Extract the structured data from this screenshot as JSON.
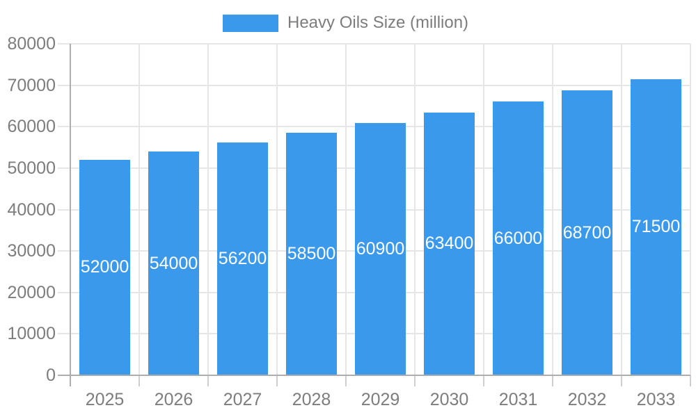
{
  "chart_data": {
    "type": "bar",
    "title": "Heavy Oils Size (million)",
    "legend": {
      "label": "Heavy Oils Size (million)",
      "position": "top"
    },
    "categories": [
      "2025",
      "2026",
      "2027",
      "2028",
      "2029",
      "2030",
      "2031",
      "2032",
      "2033"
    ],
    "series": [
      {
        "name": "Heavy Oils Size (million)",
        "values": [
          52000,
          54000,
          56200,
          58500,
          60900,
          63400,
          66000,
          68700,
          71500
        ]
      }
    ],
    "bar_value_labels": [
      "52000",
      "54000",
      "56200",
      "58500",
      "60900",
      "63400",
      "66000",
      "68700",
      "71500"
    ],
    "xlabel": "",
    "ylabel": "",
    "ylim": [
      0,
      80000
    ],
    "ytick_step": 10000,
    "ytick_labels": [
      "0",
      "10000",
      "20000",
      "30000",
      "40000",
      "50000",
      "60000",
      "70000",
      "80000"
    ],
    "grid": true,
    "colors": {
      "bar": "#3b99ec",
      "bar_value_text": "#ffffff",
      "axis_text": "#7d7d7d",
      "gridline": "#e6e6e6",
      "axis_line": "#adadad",
      "category_tick": "#cfcfcf"
    }
  }
}
